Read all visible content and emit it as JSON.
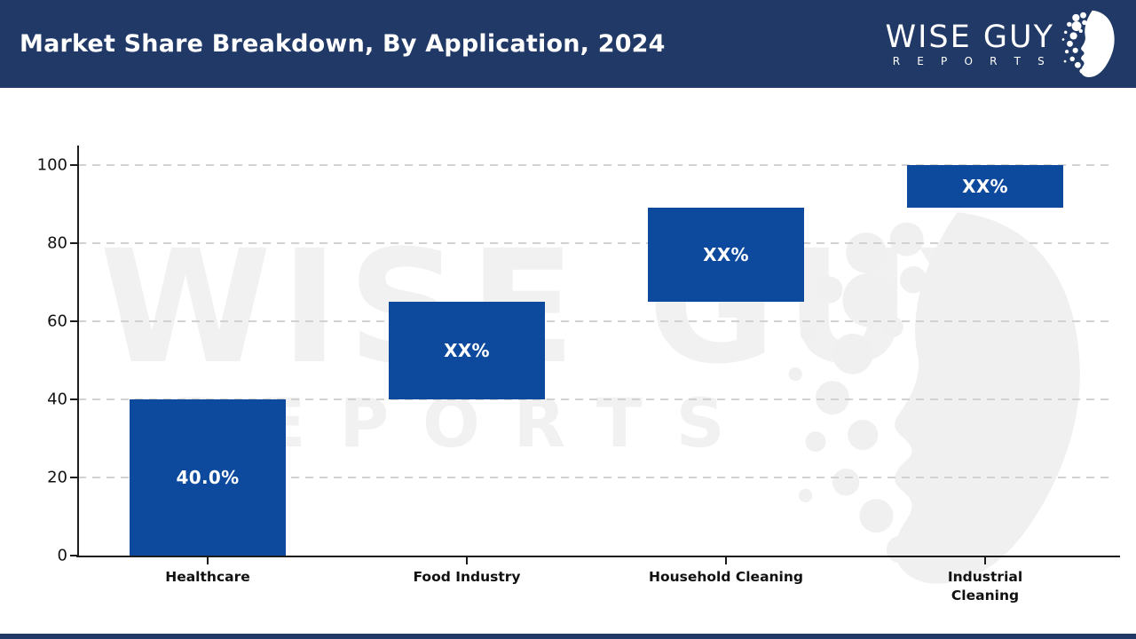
{
  "header": {
    "title": "Market Share Breakdown, By Application, 2024",
    "bg_color": "#213966",
    "logo": {
      "line1": "WISE GUY",
      "line2": "REPORTS"
    }
  },
  "watermark": {
    "line1": "WISE GUY",
    "line2": "REPORTS"
  },
  "chart_data": {
    "type": "bar",
    "subtype": "waterfall",
    "title": "Market Share Breakdown, By Application, 2024",
    "categories": [
      "Healthcare",
      "Food Industry",
      "Household Cleaning",
      "Industrial Cleaning"
    ],
    "xtick_labels": [
      "Healthcare",
      "Food Industry",
      "Household Cleaning",
      "Industrial\nCleaning"
    ],
    "segments": [
      {
        "category": "Healthcare",
        "start": 0,
        "end": 40,
        "value": 40,
        "label": "40.0%"
      },
      {
        "category": "Food Industry",
        "start": 40,
        "end": 65,
        "value": 25,
        "label": "XX%"
      },
      {
        "category": "Household Cleaning",
        "start": 65,
        "end": 89,
        "value": 24,
        "label": "XX%"
      },
      {
        "category": "Industrial Cleaning",
        "start": 89,
        "end": 100,
        "value": 11,
        "label": "XX%"
      }
    ],
    "ylim": [
      0,
      100
    ],
    "yticks": [
      0,
      20,
      40,
      60,
      80,
      100
    ],
    "grid": "horizontal-dashed",
    "legend": "none",
    "bar_color": "#0d4a9e",
    "bar_label_color": "#ffffff",
    "axis_color": "#1c1c1c",
    "grid_color": "#d2d2d2"
  },
  "footer": {
    "bg_color": "#213966"
  }
}
